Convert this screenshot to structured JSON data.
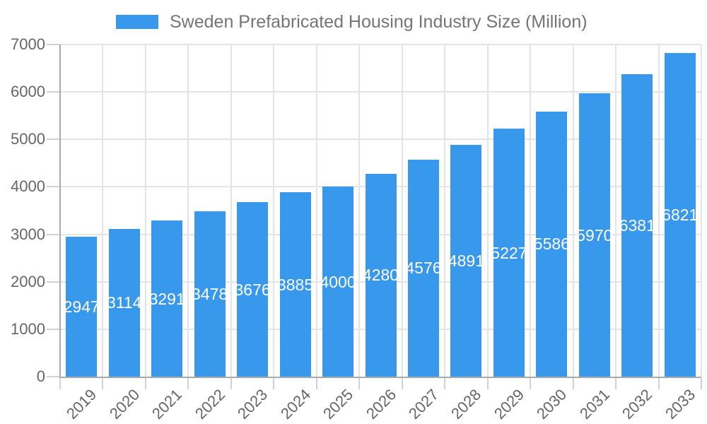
{
  "legend": {
    "position": "top",
    "swatch_color": "#3898EC",
    "series_label": "Sweden Prefabricated Housing Industry Size (Million)"
  },
  "chart_data": {
    "type": "bar",
    "title": "Sweden Prefabricated Housing Industry Size (Million)",
    "categories": [
      "2019",
      "2020",
      "2021",
      "2022",
      "2023",
      "2024",
      "2025",
      "2026",
      "2027",
      "2028",
      "2029",
      "2030",
      "2031",
      "2032",
      "2033"
    ],
    "values": [
      2947,
      3114,
      3291,
      3478,
      3676,
      3885,
      4000,
      4280,
      4576,
      4891,
      5227,
      5586,
      5970,
      6381,
      6821
    ],
    "value_labels_shown": true,
    "xlabel": "",
    "ylabel": "",
    "ylim": [
      0,
      7000
    ],
    "y_ticks": [
      0,
      1000,
      2000,
      3000,
      4000,
      5000,
      6000,
      7000
    ],
    "grid": true,
    "legend_position": "top",
    "bar_color": "#3898EC",
    "value_label_color": "#ffffff",
    "axis_tick_label_color": "#666666",
    "title_color": "#757575",
    "gridline_color": "#e4e4e4",
    "axis_line_color": "#ababab"
  }
}
